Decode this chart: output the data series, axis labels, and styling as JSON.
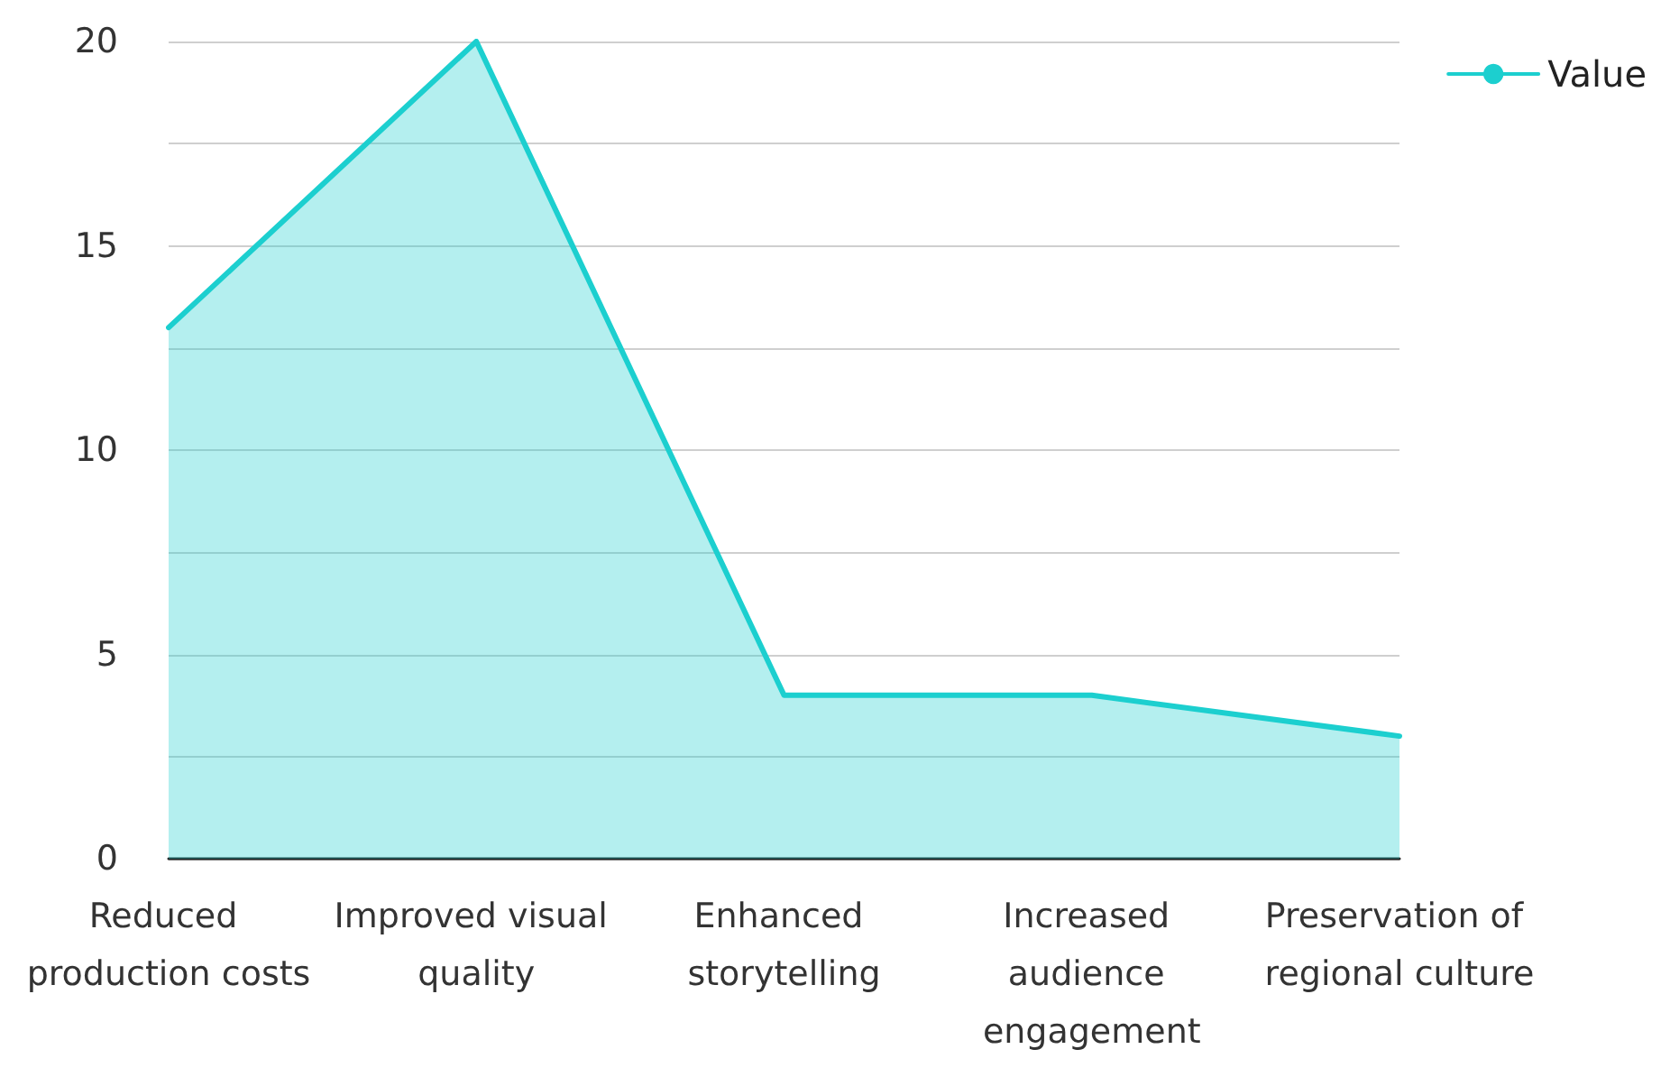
{
  "chart_data": {
    "type": "area",
    "categories": [
      "Reduced production costs",
      "Improved visual quality",
      "Enhanced storytelling",
      "Increased audience engagement",
      "Preservation of regional culture"
    ],
    "series": [
      {
        "name": "Value",
        "color": "#1ccfcf",
        "values": [
          13,
          20,
          4,
          4,
          3
        ]
      }
    ],
    "ylim": [
      0,
      20
    ],
    "yticks": [
      0,
      {
        "value": 2.5,
        "label": null
      },
      5,
      {
        "value": 7.5,
        "label": null
      },
      10,
      {
        "value": 12.5,
        "label": null
      },
      15,
      {
        "value": 17.5,
        "label": null
      },
      20
    ],
    "grid": "y",
    "legend": "top right",
    "marker": "none",
    "line_style": "solid"
  }
}
